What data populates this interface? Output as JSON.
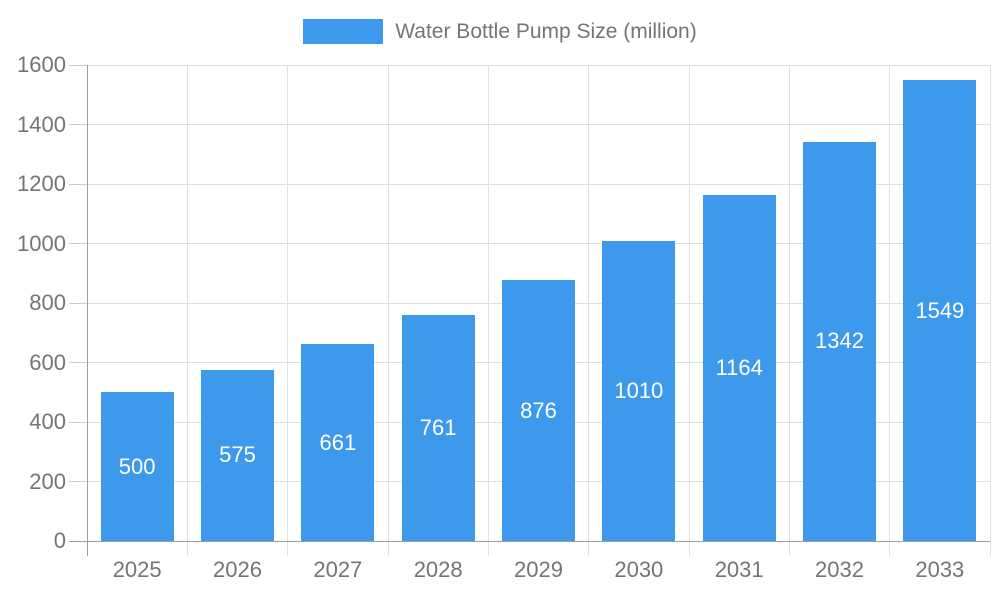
{
  "chart_data": {
    "type": "bar",
    "title": "Water Bottle Pump Size (million)",
    "categories": [
      "2025",
      "2026",
      "2027",
      "2028",
      "2029",
      "2030",
      "2031",
      "2032",
      "2033"
    ],
    "values": [
      500,
      575,
      661,
      761,
      876,
      1010,
      1164,
      1342,
      1549
    ],
    "bar_labels": [
      "500",
      "575",
      "661",
      "761",
      "876",
      "1010",
      "1164",
      "1342",
      "1549"
    ],
    "xlabel": "",
    "ylabel": "",
    "ylim": [
      0,
      1600
    ],
    "yticks": [
      0,
      200,
      400,
      600,
      800,
      1000,
      1200,
      1400,
      1600
    ],
    "grid": true,
    "legend_position": "top-center"
  },
  "colors": {
    "bar": "#3d99ec",
    "bar_label_text": "#ffffff",
    "axis_text": "#757575",
    "legend_text": "#757575",
    "gridline": "#e0e0e0",
    "axis_line": "#9e9e9e",
    "tick": "#cccccc",
    "background": "#ffffff"
  }
}
